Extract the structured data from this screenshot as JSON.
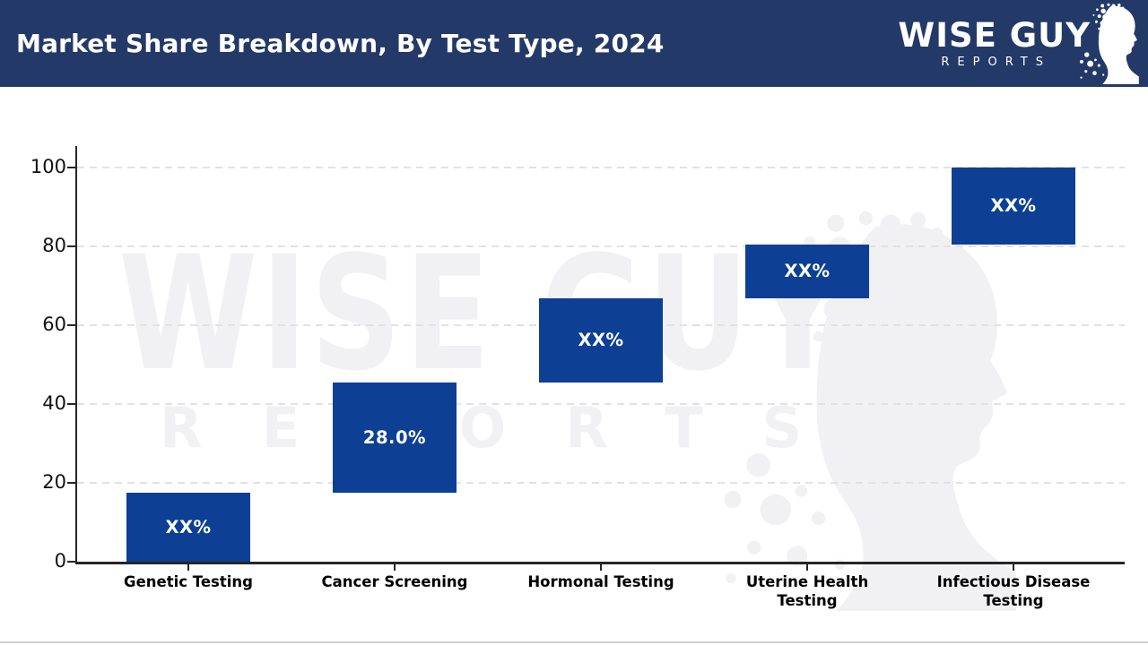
{
  "header": {
    "title": "Market Share Breakdown, By Test Type, 2024",
    "logo": {
      "line1": "WISE GUY",
      "line2": "REPORTS"
    }
  },
  "watermark": {
    "line1": "WISE GUY",
    "line2": "REPORTS"
  },
  "chart_data": {
    "type": "bar",
    "subtype": "floating-waterfall",
    "title": "Market Share Breakdown, By Test Type, 2024",
    "categories": [
      "Genetic Testing",
      "Cancer Screening",
      "Hormonal Testing",
      "Uterine Health\nTesting",
      "Infectious Disease\nTesting"
    ],
    "segments": [
      {
        "category": "Genetic Testing",
        "start": 0,
        "end": 17.5,
        "label": "XX%"
      },
      {
        "category": "Cancer Screening",
        "start": 17.5,
        "end": 45.5,
        "label": "28.0%"
      },
      {
        "category": "Hormonal Testing",
        "start": 45.5,
        "end": 66.8,
        "label": "XX%"
      },
      {
        "category": "Uterine Health Testing",
        "start": 66.8,
        "end": 80.5,
        "label": "XX%"
      },
      {
        "category": "Infectious Disease Testing",
        "start": 80.5,
        "end": 100,
        "label": "XX%"
      }
    ],
    "ylim": [
      0,
      100
    ],
    "yticks": [
      0,
      20,
      40,
      60,
      80,
      100
    ],
    "grid": "dashed-horizontal",
    "legend": null,
    "bar_color": "#0D4094",
    "bar_label_color": "#FFFFFF"
  },
  "colors": {
    "header_bg": "#233A69",
    "bar_blue": "#0D4094",
    "axis": "#262626",
    "gridline": "#E2E2E6",
    "watermark": "#F1F1F4",
    "footer_line": "#CFCFCF"
  }
}
